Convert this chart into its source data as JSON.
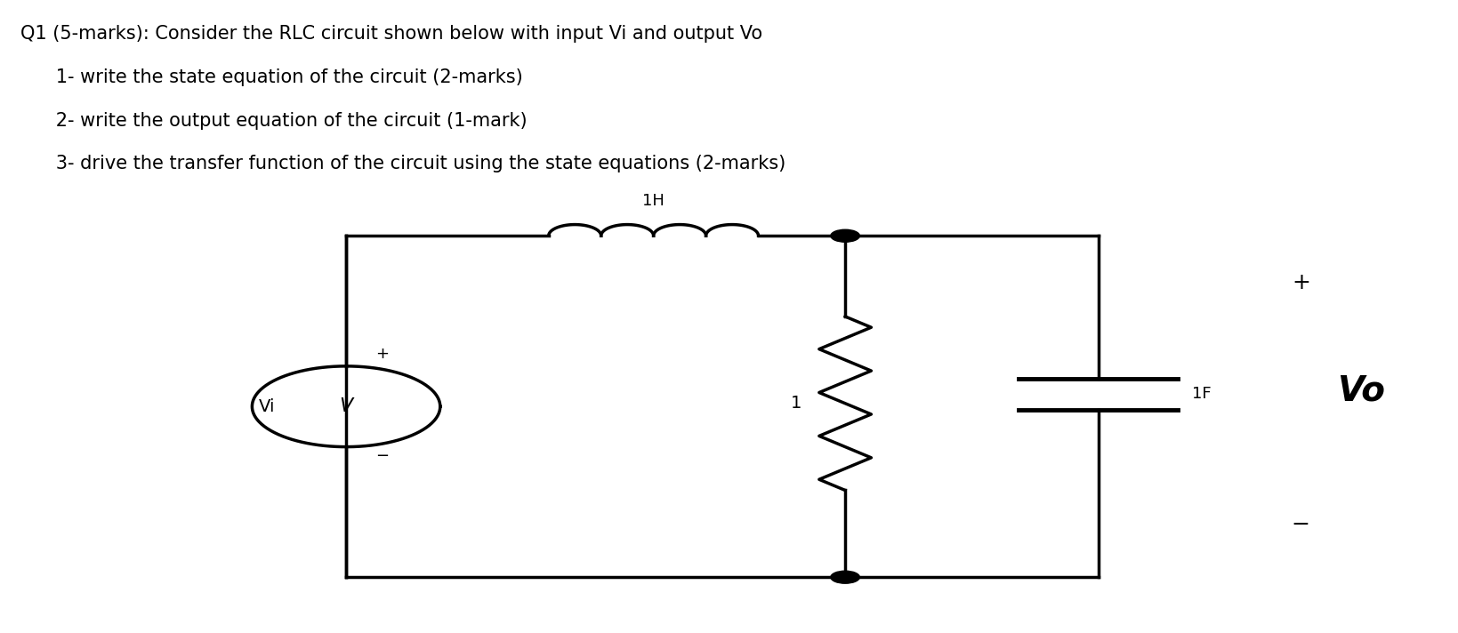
{
  "title_line1": "Q1 (5-marks): Consider the RLC circuit shown below with input Vi and output Vo",
  "title_line2": "      1- write the state equation of the circuit (2-marks)",
  "title_line3": "      2- write the output equation of the circuit (1-mark)",
  "title_line4": "      3- drive the transfer function of the circuit using the state equations (2-marks)",
  "bg_color": "#ffffff",
  "line_color": "#000000",
  "text_color": "#000000",
  "inductor_label": "1H",
  "resistor_label": "1",
  "capacitor_label": "1F",
  "source_label": "Vi",
  "output_label": "Vo"
}
